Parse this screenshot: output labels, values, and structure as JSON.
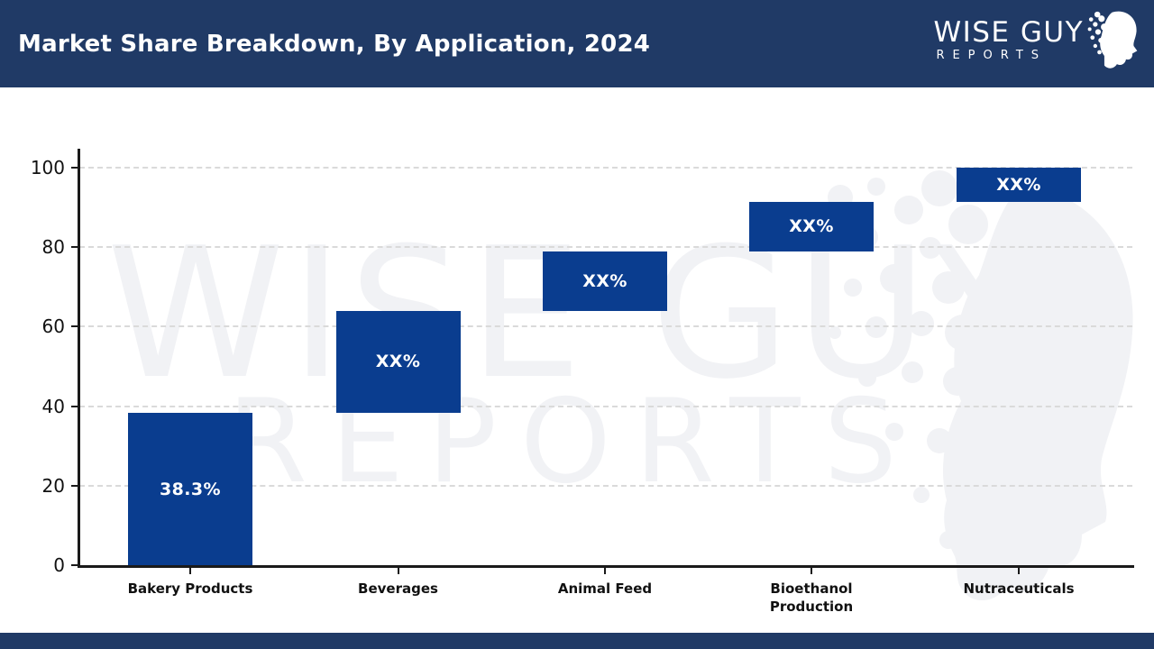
{
  "header": {
    "title": "Market Share Breakdown, By Application, 2024",
    "logo": {
      "line1": "WISE GUY",
      "line2": "REPORTS"
    }
  },
  "watermark": {
    "line1": "WISE GUY",
    "line2": "REPORTS"
  },
  "colors": {
    "header_bg": "#203A66",
    "footer_bg": "#203A66",
    "bar": "#0A3D8F",
    "value_label": "#FFFFFF",
    "grid": "#DADADA",
    "axis": "#1A1A1A",
    "watermark": "#F1F2F5"
  },
  "chart_data": {
    "type": "bar",
    "variant": "waterfall",
    "title": "Market Share Breakdown, By Application, 2024",
    "xlabel": "",
    "ylabel": "",
    "ylim": [
      0,
      100
    ],
    "yticks": [
      0,
      20,
      40,
      60,
      80,
      100
    ],
    "grid": "horizontal-dashed",
    "legend": "none",
    "categories": [
      "Bakery Products",
      "Beverages",
      "Animal Feed",
      "Bioethanol Production",
      "Nutraceuticals"
    ],
    "segments": [
      {
        "category": "Bakery Products",
        "start": 0,
        "end": 38.3,
        "label": "38.3%"
      },
      {
        "category": "Beverages",
        "start": 38.3,
        "end": 64,
        "label": "XX%"
      },
      {
        "category": "Animal Feed",
        "start": 64,
        "end": 79,
        "label": "XX%"
      },
      {
        "category": "Bioethanol Production",
        "start": 79,
        "end": 91.5,
        "label": "XX%"
      },
      {
        "category": "Nutraceuticals",
        "start": 91.5,
        "end": 100,
        "label": "XX%"
      }
    ]
  }
}
